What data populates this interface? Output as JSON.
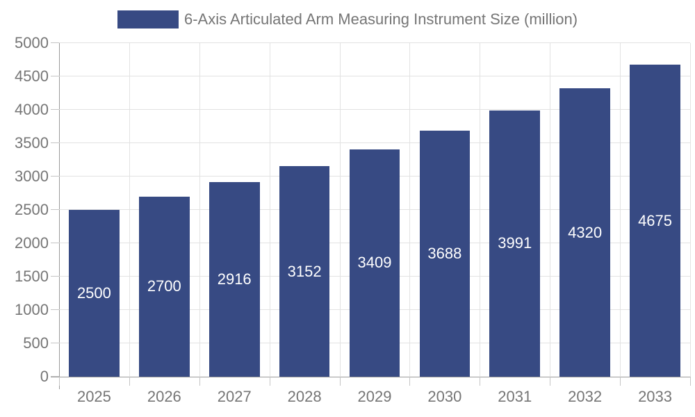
{
  "legend": {
    "label": "6-Axis Articulated Arm Measuring Instrument Size (million)"
  },
  "chart_data": {
    "type": "bar",
    "title": "6-Axis Articulated Arm Measuring Instrument Size (million)",
    "series_name": "6-Axis Articulated Arm Measuring Instrument Size (million)",
    "categories": [
      "2025",
      "2026",
      "2027",
      "2028",
      "2029",
      "2030",
      "2031",
      "2032",
      "2033"
    ],
    "values": [
      2500,
      2700,
      2916,
      3152,
      3409,
      3688,
      3991,
      4320,
      4675
    ],
    "value_labels": [
      "2500",
      "2700",
      "2916",
      "3152",
      "3409",
      "3688",
      "3991",
      "4320",
      "4675"
    ],
    "xlabel": "",
    "ylabel": "",
    "ylim": [
      0,
      5000
    ],
    "yticks": [
      0,
      500,
      1000,
      1500,
      2000,
      2500,
      3000,
      3500,
      4000,
      4500,
      5000
    ],
    "grid": true,
    "legend_position": "top",
    "colors": {
      "bar": "#374a83",
      "bar_value_text": "#ffffff",
      "axis_text": "#757575",
      "legend_text": "#757575",
      "gridline": "#e2e2e2",
      "axis_line": "#999999",
      "tick": "#c4c4c4",
      "background": "#ffffff"
    }
  }
}
